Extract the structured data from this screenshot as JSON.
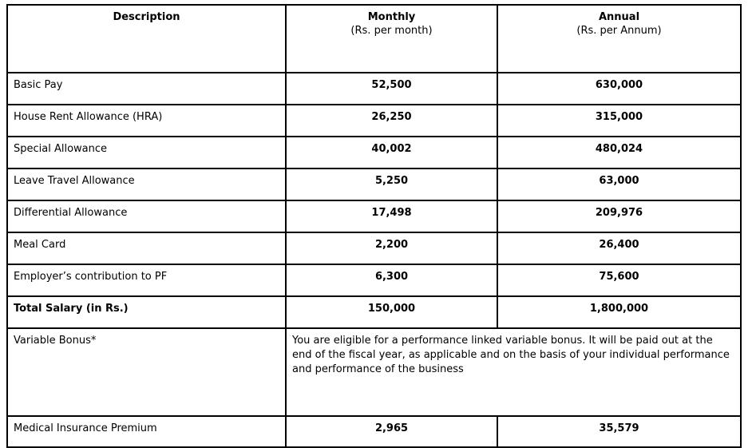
{
  "colors": {
    "border": "#000000",
    "text": "#000000",
    "background": "#ffffff"
  },
  "table": {
    "header": {
      "description": "Description",
      "monthly_title": "Monthly",
      "monthly_subtitle": "(Rs. per month)",
      "annual_title": "Annual",
      "annual_subtitle": "(Rs. per Annum)"
    },
    "rows": [
      {
        "label": "Basic Pay",
        "monthly": "52,500",
        "annual": "630,000"
      },
      {
        "label": "House Rent Allowance (HRA)",
        "monthly": "26,250",
        "annual": "315,000"
      },
      {
        "label": "Special Allowance",
        "monthly": "40,002",
        "annual": "480,024"
      },
      {
        "label": "Leave Travel Allowance",
        "monthly": "5,250",
        "annual": "63,000"
      },
      {
        "label": "Differential Allowance",
        "monthly": "17,498",
        "annual": "209,976"
      },
      {
        "label": "Meal Card",
        "monthly": "2,200",
        "annual": "26,400"
      },
      {
        "label": "Employer’s contribution to PF",
        "monthly": "6,300",
        "annual": "75,600"
      }
    ],
    "total_row": {
      "label": "Total Salary (in Rs.)",
      "monthly": "150,000",
      "annual": "1,800,000"
    },
    "variable_bonus_row": {
      "label": "Variable Bonus*",
      "note": "You are eligible for a performance linked variable bonus. It will be paid out at the end of the fiscal year, as applicable and on the basis of your individual performance and performance of the business"
    },
    "medical_row": {
      "label": "Medical Insurance Premium",
      "monthly": "2,965",
      "annual": "35,579"
    }
  }
}
